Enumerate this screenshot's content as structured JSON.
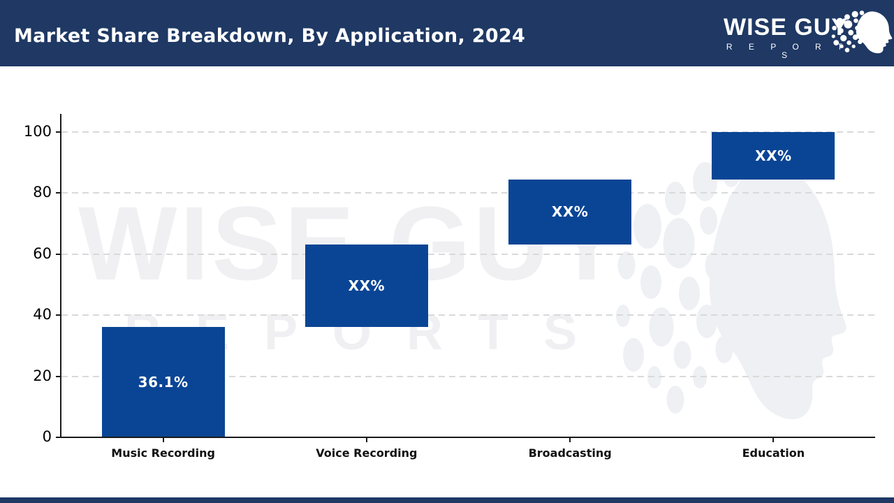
{
  "header": {
    "title": "Market Share Breakdown, By Application, 2024",
    "logo": {
      "line1": "WISE GUY",
      "line2": "R E P O R T S"
    }
  },
  "watermark": {
    "line1": "WISE GUY",
    "line2": "REPORTS",
    "head_icon": "dotted-head-profile"
  },
  "colors": {
    "header_bg": "#1f3864",
    "footer_bg": "#1f3864",
    "bar": "#0a4595",
    "bar_label": "#ffffff",
    "gridline": "#d9d9d9",
    "axis": "#1a1a1a",
    "watermark": "#f0f0f3"
  },
  "chart_data": {
    "type": "bar",
    "subtype": "waterfall",
    "title": "Market Share Breakdown, By Application, 2024",
    "xlabel": "",
    "ylabel": "",
    "ylim": [
      0,
      100
    ],
    "y_ticks": [
      0,
      20,
      40,
      60,
      80,
      100
    ],
    "grid": "horizontal-dashed",
    "legend": "none",
    "categories": [
      "Music Recording",
      "Voice Recording",
      "Broadcasting",
      "Education"
    ],
    "segments": [
      {
        "category": "Music Recording",
        "start": 0,
        "end": 36.1,
        "label": "36.1%"
      },
      {
        "category": "Voice Recording",
        "start": 36.1,
        "end": 63.2,
        "label": "XX%"
      },
      {
        "category": "Broadcasting",
        "start": 63.2,
        "end": 84.4,
        "label": "XX%"
      },
      {
        "category": "Education",
        "start": 84.4,
        "end": 100,
        "label": "XX%"
      }
    ]
  }
}
